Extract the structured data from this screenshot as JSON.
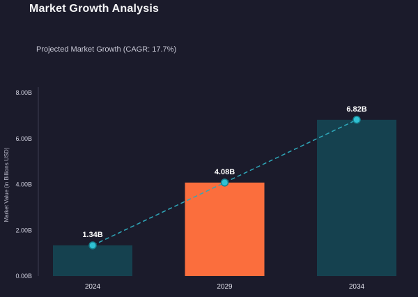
{
  "chart_data": {
    "type": "bar",
    "title": "Market Growth Analysis",
    "subtitle": "Projected Market Growth (CAGR: 17.7%)",
    "ylabel": "Market Value (in Billions USD)",
    "categories": [
      "2024",
      "2029",
      "2034"
    ],
    "values": [
      1.34,
      4.08,
      6.82
    ],
    "value_labels": [
      "1.34B",
      "4.08B",
      "6.82B"
    ],
    "bar_colors": [
      "#15414f",
      "#fb6e3d",
      "#15414f"
    ],
    "ylim": [
      0,
      8
    ],
    "yticks": [
      0,
      2,
      4,
      6,
      8
    ],
    "ytick_labels": [
      "0.00B",
      "2.00B",
      "4.00B",
      "6.00B",
      "8.00B"
    ],
    "trend_line": {
      "style": "dashed",
      "color": "#2fa8ba",
      "marker_fill": "#2fc1d3",
      "marker_stroke": "#157f8d"
    },
    "colors": {
      "background": "#1b1b2b",
      "axis": "#3c3c52",
      "title": "#f5f5f7",
      "subtitle": "#c9c9d6"
    },
    "grid": false,
    "legend": "none"
  }
}
